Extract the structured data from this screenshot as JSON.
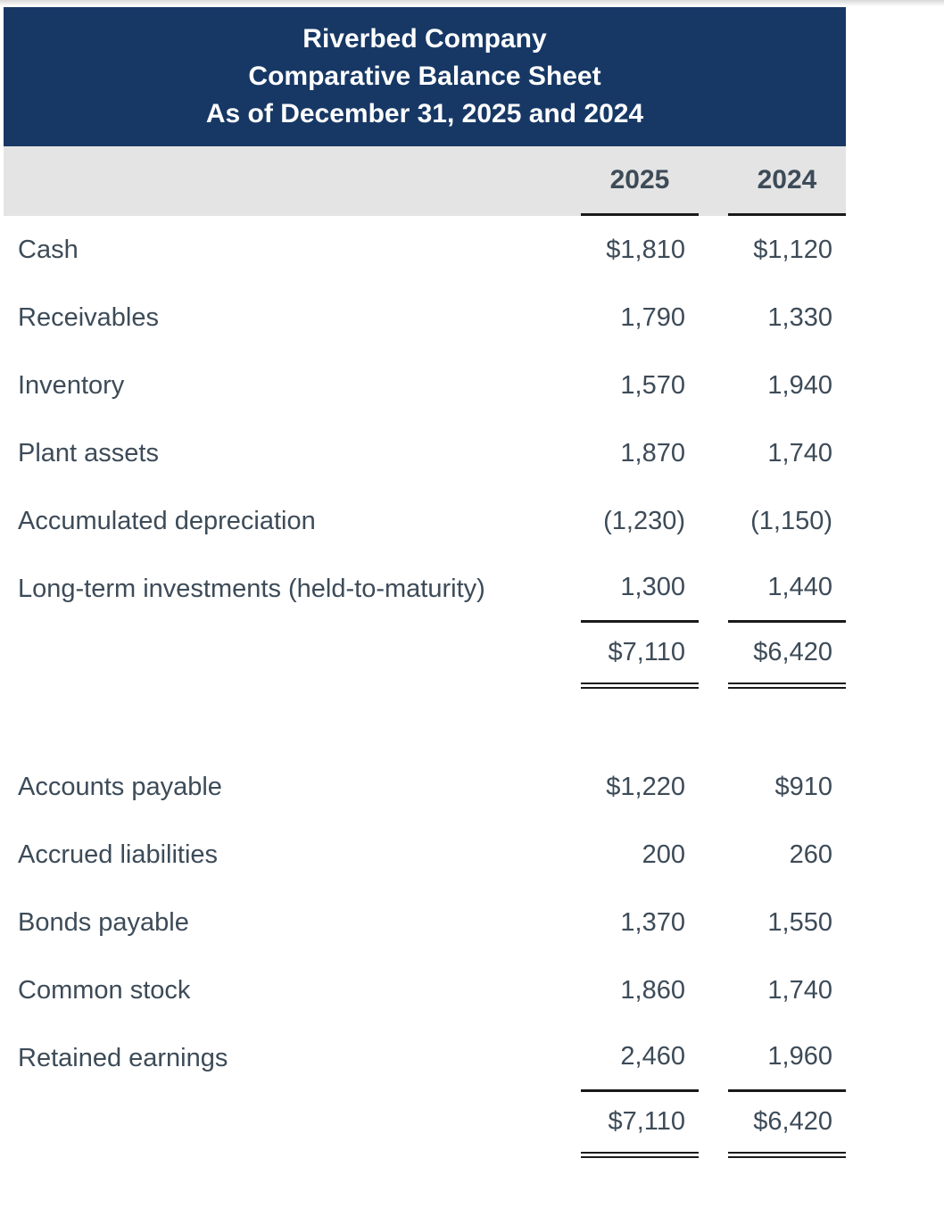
{
  "header": {
    "company": "Riverbed Company",
    "statement": "Comparative Balance Sheet",
    "period": "As of December 31, 2025 and 2024"
  },
  "column_headers": {
    "y2025": "2025",
    "y2024": "2024"
  },
  "section_assets": {
    "rows": [
      {
        "label": "Cash",
        "v2025": "$1,810",
        "v2024": "$1,120"
      },
      {
        "label": "Receivables",
        "v2025": "1,790",
        "v2024": "1,330"
      },
      {
        "label": "Inventory",
        "v2025": "1,570",
        "v2024": "1,940"
      },
      {
        "label": "Plant assets",
        "v2025": "1,870",
        "v2024": "1,740"
      },
      {
        "label": "Accumulated depreciation",
        "v2025": "(1,230)",
        "v2024": "(1,150)"
      },
      {
        "label": "Long-term investments (held-to-maturity)",
        "v2025": "1,300",
        "v2024": "1,440"
      }
    ],
    "total": {
      "v2025": "$7,110",
      "v2024": "$6,420"
    }
  },
  "section_liabilities_equity": {
    "rows": [
      {
        "label": "Accounts payable",
        "v2025": "$1,220",
        "v2024": "$910"
      },
      {
        "label": "Accrued liabilities",
        "v2025": "200",
        "v2024": "260"
      },
      {
        "label": "Bonds payable",
        "v2025": "1,370",
        "v2024": "1,550"
      },
      {
        "label": "Common stock",
        "v2025": "1,860",
        "v2024": "1,740"
      },
      {
        "label": "Retained earnings",
        "v2025": "2,460",
        "v2024": "1,960"
      }
    ],
    "total": {
      "v2025": "$7,110",
      "v2024": "$6,420"
    }
  },
  "colors": {
    "header_bg": "#173865",
    "header_text": "#ffffff",
    "colhead_bg": "#e4e4e4",
    "text": "#3d4b58",
    "rule": "#1a1a1a",
    "page_bg": "#ffffff"
  }
}
